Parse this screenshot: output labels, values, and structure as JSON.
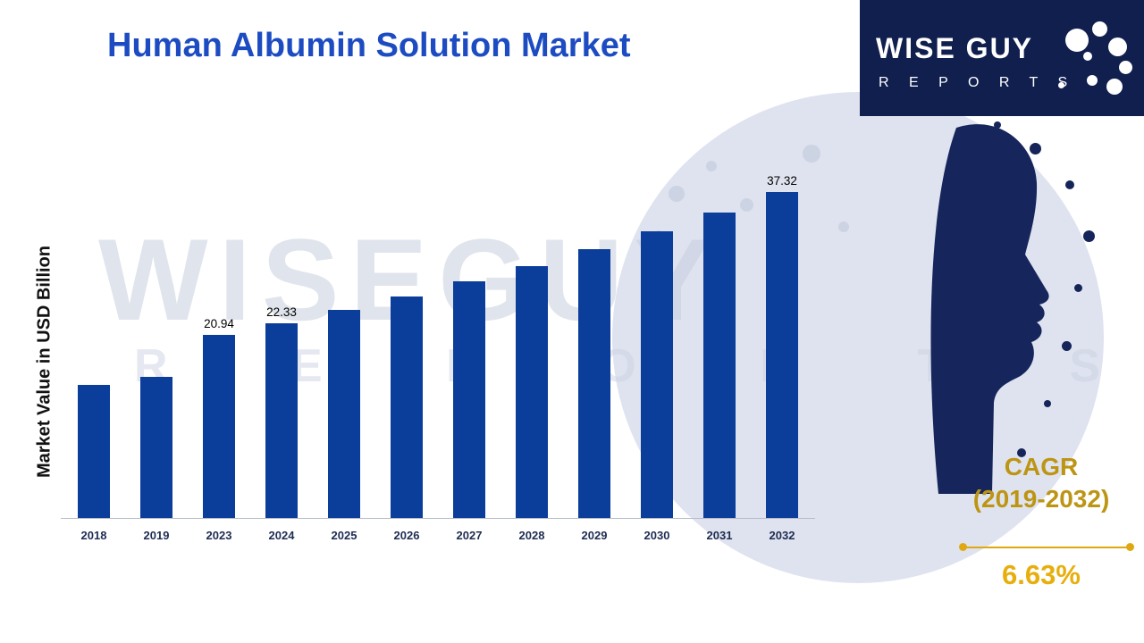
{
  "title": "Human Albumin Solution Market",
  "y_axis_label": "Market Value in USD Billion",
  "watermark": {
    "line1": "WISEGUY",
    "line2": "R E P O R T S"
  },
  "logo": {
    "line1": "WISE GUY",
    "line2": "R E P O R T S"
  },
  "cagr": {
    "line1": "CAGR",
    "line2": "(2019-2032)",
    "value": "6.63%"
  },
  "colors": {
    "bar": "#0b3d9b",
    "title_blue": "#1d4cc2",
    "panel_navy": "#101f4e",
    "gold": "#e0a810",
    "circle": "#dfe3ef"
  },
  "chart_data": {
    "type": "bar",
    "categories": [
      "2018",
      "2019",
      "2023",
      "2024",
      "2025",
      "2026",
      "2027",
      "2028",
      "2029",
      "2030",
      "2031",
      "2032"
    ],
    "values": [
      15.2,
      16.2,
      20.94,
      22.33,
      23.81,
      25.39,
      27.07,
      28.87,
      30.78,
      32.82,
      35.0,
      37.32
    ],
    "data_labels": {
      "2023": "20.94",
      "2024": "22.33",
      "2032": "37.32"
    },
    "title": "Human Albumin Solution Market",
    "xlabel": "",
    "ylabel": "Market Value in USD Billion",
    "ylim": [
      0,
      40
    ],
    "grid": false,
    "legend": false,
    "bar_color": "#0b3d9b"
  }
}
